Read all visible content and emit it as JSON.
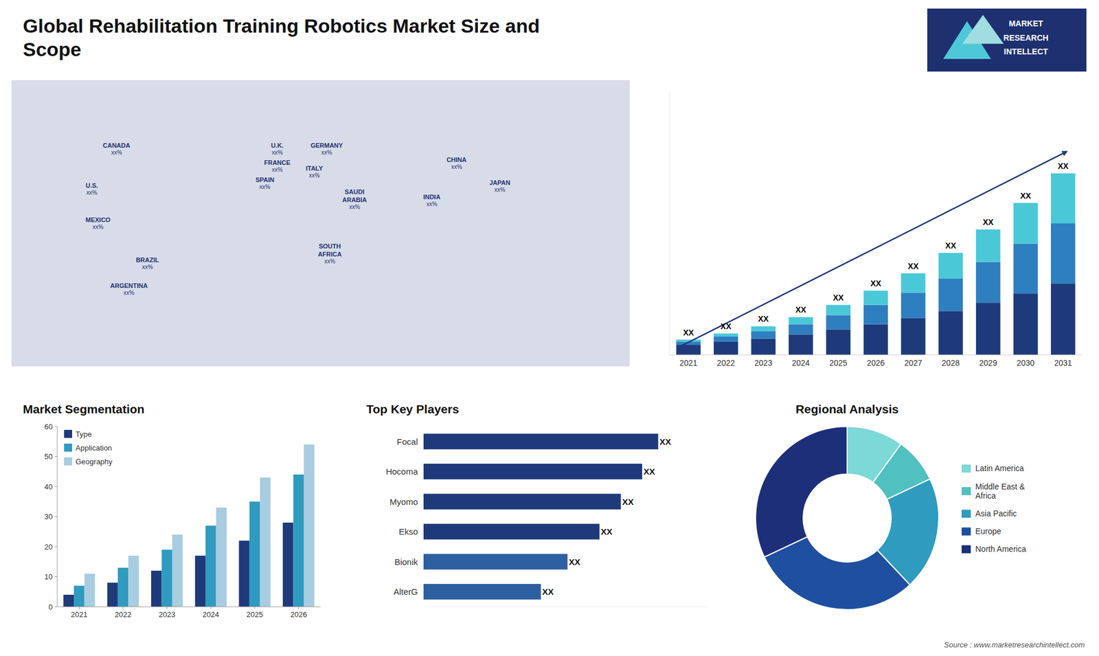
{
  "chart_data": [
    {
      "type": "bar",
      "stacked": true,
      "title": "Global Rehabilitation Training Robotics Market Size and\nScope",
      "categories": [
        "2021",
        "2022",
        "2023",
        "2024",
        "2025",
        "2026",
        "2027",
        "2028",
        "2029",
        "2030",
        "2031"
      ],
      "series": [
        {
          "color": "#1e3a7a",
          "values": [
            1.0,
            1.3,
            1.6,
            2.0,
            2.5,
            3.0,
            3.6,
            4.3,
            5.1,
            6.0,
            7.0
          ]
        },
        {
          "color": "#2e7fbf",
          "values": [
            0.3,
            0.5,
            0.7,
            1.0,
            1.4,
            1.9,
            2.5,
            3.2,
            4.0,
            4.9,
            5.9
          ]
        },
        {
          "color": "#4bc8d8",
          "values": [
            0.2,
            0.3,
            0.5,
            0.7,
            1.0,
            1.4,
            1.9,
            2.5,
            3.2,
            4.0,
            4.9
          ]
        }
      ],
      "annotations": [
        "XX",
        "XX",
        "XX",
        "XX",
        "XX",
        "XX",
        "XX",
        "XX",
        "XX",
        "XX",
        "XX"
      ],
      "ylim": [
        0,
        25.81
      ],
      "yticks": [],
      "tick_labels": "x",
      "grid": false
    },
    {
      "type": "map",
      "color": "#1e3070",
      "annotations": [
        {
          "text": "CANADA",
          "label": "xx%"
        },
        {
          "text": "U.S.",
          "label": "xx%"
        },
        {
          "text": "MEXICO",
          "label": "xx%"
        },
        {
          "text": "BRAZIL",
          "label": "xx%"
        },
        {
          "text": "ARGENTINA",
          "label": "xx%"
        },
        {
          "text": "U.K.",
          "label": "xx%"
        },
        {
          "text": "FRANCE",
          "label": "xx%"
        },
        {
          "text": "SPAIN",
          "label": "xx%"
        },
        {
          "text": "GERMANY",
          "label": "xx%"
        },
        {
          "text": "ITALY",
          "label": "xx%"
        },
        {
          "text": "SAUDI\nARABIA",
          "label": "xx%"
        },
        {
          "text": "SOUTH\nAFRICA",
          "label": "xx%"
        },
        {
          "text": "CHINA",
          "label": "xx%"
        },
        {
          "text": "JAPAN",
          "label": "xx%"
        },
        {
          "text": "INDIA",
          "label": "xx%"
        }
      ]
    },
    {
      "type": "bar",
      "title": "Market Segmentation",
      "categories": [
        "2021",
        "2022",
        "2023",
        "2024",
        "2025",
        "2026"
      ],
      "series": [
        {
          "name": "Type",
          "color": "#1e3a7a",
          "values": [
            4,
            8,
            12,
            17,
            22,
            28
          ]
        },
        {
          "name": "Application",
          "color": "#2e9bbf",
          "values": [
            7,
            13,
            19,
            27,
            35,
            44
          ]
        },
        {
          "name": "Geography",
          "color": "#a8cce0",
          "values": [
            11,
            17,
            24,
            33,
            43,
            54
          ]
        }
      ],
      "ylim": [
        0,
        60
      ],
      "yticks": [
        0,
        10,
        20,
        30,
        40,
        50,
        60
      ],
      "legend": "upper left",
      "grid": false
    },
    {
      "type": "bar",
      "orientation": "horizontal",
      "title": "Top Key Players",
      "categories": [
        "Focal",
        "Hocoma",
        "Myomo",
        "Ekso",
        "Bionik",
        "AlterG"
      ],
      "values": [
        88,
        82,
        74,
        66,
        54,
        44
      ],
      "colors": [
        "#1e3a7a",
        "#1e3a7a",
        "#1e3a7a",
        "#1e3a7a",
        "#2e5fa0",
        "#2e5fa0"
      ],
      "annotations": [
        "XX",
        "XX",
        "XX",
        "XX",
        "XX",
        "XX"
      ],
      "xlim": [
        0,
        107.36
      ],
      "xticks": [],
      "tick_labels": "y",
      "grid": false
    },
    {
      "type": "pie",
      "title": "Regional Analysis",
      "categories": [
        "Latin America",
        "Middle East &\nAfrica",
        "Asia Pacific",
        "Europe",
        "North America"
      ],
      "values": [
        10,
        8,
        20,
        30,
        32
      ],
      "colors": [
        "#7dd8d8",
        "#50c0c0",
        "#2e9bbf",
        "#1e4fa0",
        "#1e2f7a"
      ],
      "legend": "right"
    }
  ],
  "annotations": [
    "MARKET",
    "RESEARCH",
    "INTELLECT",
    "Source : www.marketresearchintellect.com"
  ]
}
